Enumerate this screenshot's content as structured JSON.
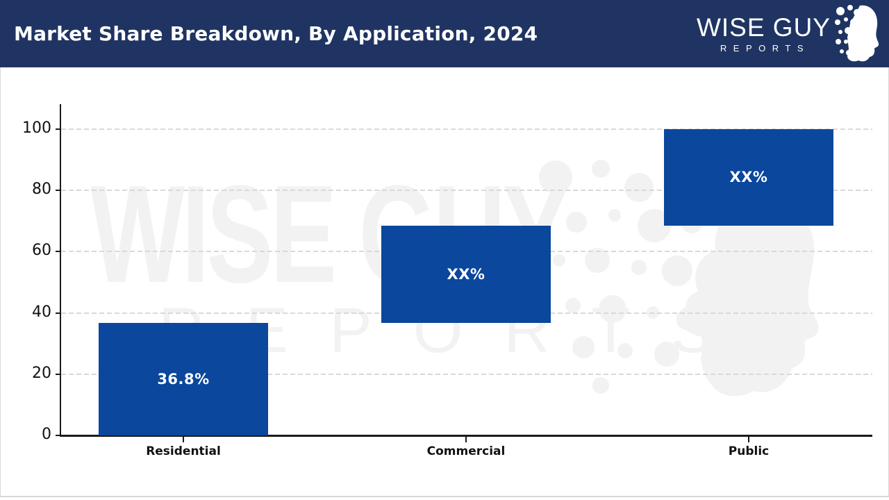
{
  "header": {
    "title": "Market Share Breakdown, By Application, 2024",
    "logo": {
      "name": "WISE GUY",
      "tagline": "REPORTS"
    }
  },
  "watermark": {
    "name": "WISE GUY",
    "tagline": "REPORTS"
  },
  "colors": {
    "header_bg": "#1f3462",
    "bar": "#0a479d",
    "grid": "#d9d9d9",
    "axis": "#1a1a1a",
    "watermark": "#f2f2f2",
    "bar_label": "#ffffff"
  },
  "chart_data": {
    "type": "bar",
    "variant": "floating-waterfall",
    "title": "",
    "xlabel": "",
    "ylabel": "",
    "categories": [
      "Residential",
      "Commercial",
      "Public"
    ],
    "segments": [
      {
        "category": "Residential",
        "start": 0,
        "end": 36.8,
        "label": "36.8%"
      },
      {
        "category": "Commercial",
        "start": 36.8,
        "end": 68.5,
        "label": "XX%"
      },
      {
        "category": "Public",
        "start": 68.5,
        "end": 100,
        "label": "XX%"
      }
    ],
    "y_ticks": [
      0,
      20,
      40,
      60,
      80,
      100
    ],
    "ylim": [
      0,
      108
    ],
    "grid": "horizontal-dashed",
    "legend": "none",
    "bar_color": "#0a479d",
    "label_color": "#ffffff"
  }
}
